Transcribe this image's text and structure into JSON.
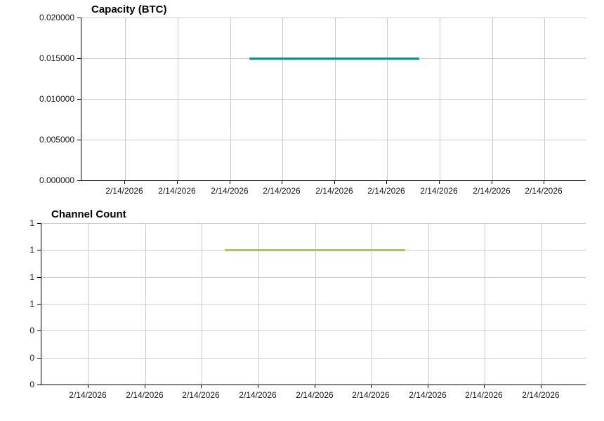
{
  "page": {
    "background": "#ffffff",
    "grid_color": "#cccccc",
    "axis_color": "#000000",
    "label_color": "#1a1a1a"
  },
  "chart_data": [
    {
      "type": "line",
      "title": "Capacity (BTC)",
      "legend": "none",
      "grid": true,
      "y_axis": {
        "tick_labels": [
          "0.020000",
          "0.015000",
          "0.010000",
          "0.005000",
          "0.000000"
        ],
        "range": [
          0,
          0.02
        ]
      },
      "x_axis": {
        "tick_labels": [
          "2/14/2026",
          "2/14/2026",
          "2/14/2026",
          "2/14/2026",
          "2/14/2026",
          "2/14/2026",
          "2/14/2026",
          "2/14/2026",
          "2/14/2026"
        ]
      },
      "series": [
        {
          "name": "Capacity (BTC)",
          "color": "#0e8a96",
          "value": 0.015,
          "x_span_frac": [
            0.333,
            0.67
          ],
          "points": [
            [
              0.333,
              0.015
            ],
            [
              0.67,
              0.015
            ]
          ]
        }
      ]
    },
    {
      "type": "line",
      "title": "Channel Count",
      "legend": "none",
      "grid": true,
      "y_axis": {
        "tick_labels": [
          "1",
          "1",
          "1",
          "1",
          "0",
          "0",
          "0"
        ],
        "range": [
          0,
          1.2
        ]
      },
      "x_axis": {
        "tick_labels": [
          "2/14/2026",
          "2/14/2026",
          "2/14/2026",
          "2/14/2026",
          "2/14/2026",
          "2/14/2026",
          "2/14/2026",
          "2/14/2026",
          "2/14/2026"
        ]
      },
      "series": [
        {
          "name": "Channel Count",
          "color": "#a0d040",
          "value": 1,
          "x_span_frac": [
            0.337,
            0.668
          ],
          "points": [
            [
              0.337,
              1
            ],
            [
              0.668,
              1
            ]
          ]
        }
      ]
    }
  ]
}
